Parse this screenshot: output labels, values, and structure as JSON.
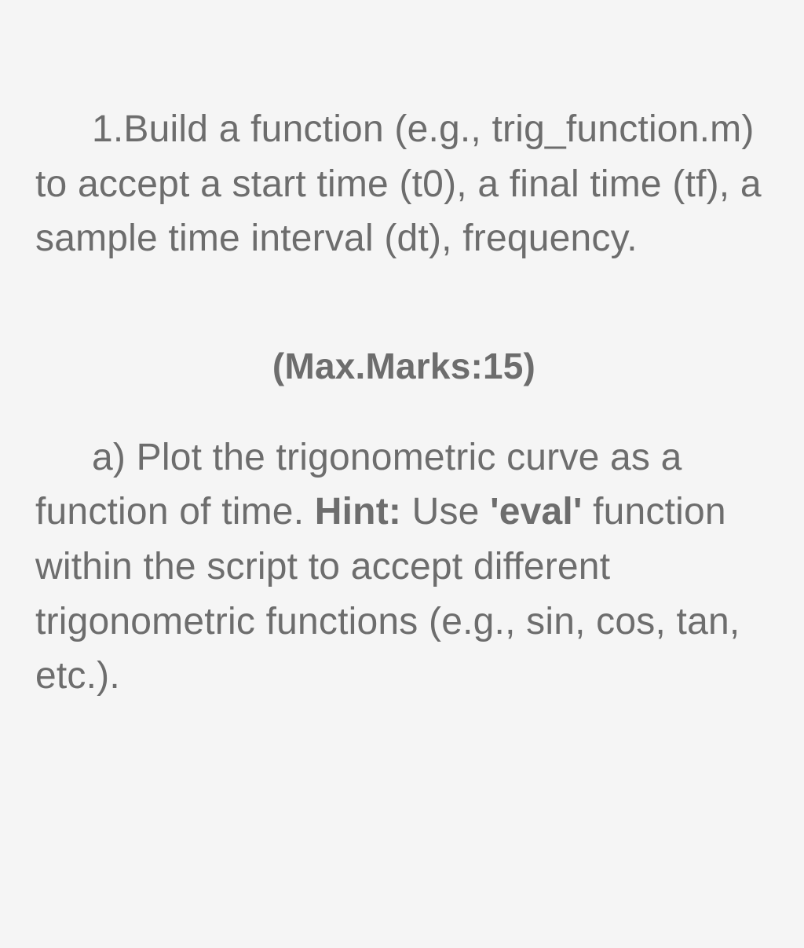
{
  "question": {
    "para1_lead": "1.Build a function (e.g., trig_function.m) to accept a start time (t0), a final time (tf), a sample time interval (dt), frequency.",
    "marks_line": "(Max.Marks:15)",
    "part_a_before_hint": "a) Plot the trigonometric curve as a function of time. ",
    "hint_label": "Hint:",
    "part_a_mid": " Use ",
    "eval_quoted": "'eval'",
    "part_a_after": " function within the script to accept different trigonometric functions (e.g., sin, cos, tan, etc.)."
  }
}
